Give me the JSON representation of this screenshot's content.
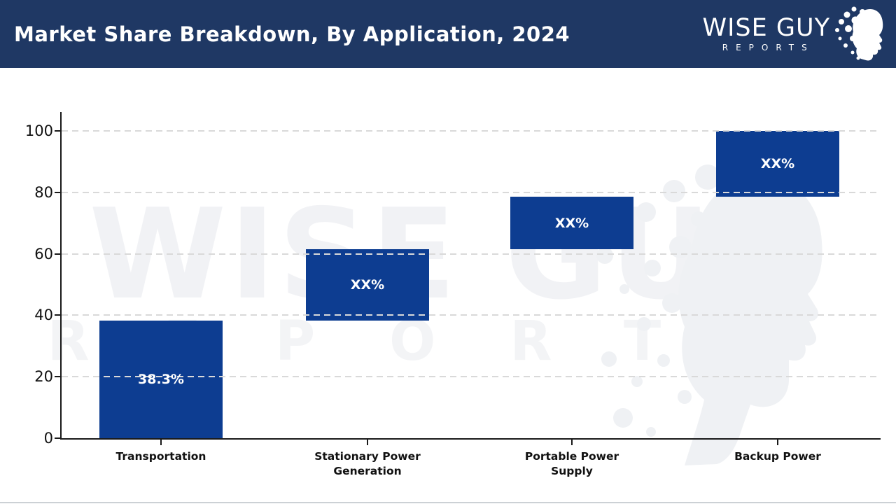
{
  "header": {
    "title": "Market Share Breakdown, By Application, 2024",
    "bg_color": "#1f3864",
    "logo": {
      "line1": "WISE GUY",
      "line2": "REPORTS"
    }
  },
  "watermark": {
    "line1": "WISE GUY",
    "line2": "REPORTS"
  },
  "chart_data": {
    "type": "bar",
    "subtype": "waterfall",
    "title": "Market Share Breakdown, By Application, 2024",
    "xlabel": "",
    "ylabel": "",
    "ylim": [
      0,
      105
    ],
    "yticks": [
      0,
      20,
      40,
      60,
      80,
      100
    ],
    "grid": "horizontal-dashed",
    "bar_color": "#0d3d91",
    "value_label_color": "#ffffff",
    "categories": [
      "Transportation",
      "Stationary Power Generation",
      "Portable Power Supply",
      "Backup Power"
    ],
    "segments": [
      {
        "category": "Transportation",
        "start": 0,
        "end": 38.3,
        "label": "38.3%"
      },
      {
        "category": "Stationary Power Generation",
        "start": 38.3,
        "end": 61.5,
        "label": "XX%"
      },
      {
        "category": "Portable Power Supply",
        "start": 61.5,
        "end": 78.5,
        "label": "XX%"
      },
      {
        "category": "Backup Power",
        "start": 78.5,
        "end": 100,
        "label": "XX%"
      }
    ]
  }
}
